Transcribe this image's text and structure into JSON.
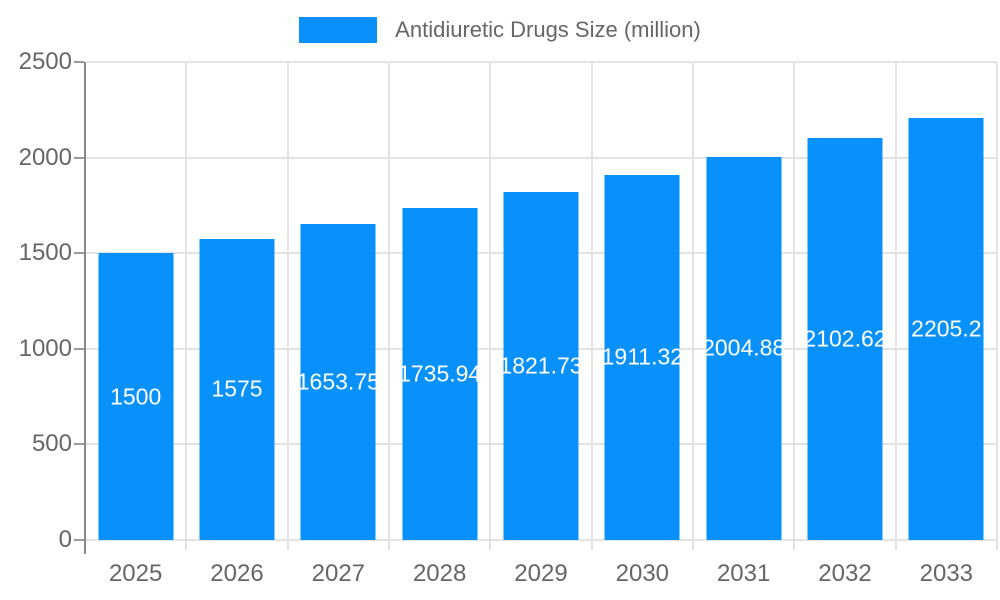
{
  "legend": {
    "swatch_color": "#0991fb",
    "label": "Antidiuretic Drugs Size (million)"
  },
  "chart_data": {
    "type": "bar",
    "title": "Antidiuretic Drugs Size (million)",
    "categories": [
      "2025",
      "2026",
      "2027",
      "2028",
      "2029",
      "2030",
      "2031",
      "2032",
      "2033"
    ],
    "values": [
      1500,
      1575,
      1653.75,
      1735.94,
      1821.73,
      1911.32,
      2004.88,
      2102.62,
      2205.2
    ],
    "bar_labels": [
      "1500",
      "1575",
      "1653.75",
      "1735.94",
      "1821.73",
      "1911.32",
      "2004.88",
      "2102.62",
      "2205.2"
    ],
    "xlabel": "",
    "ylabel": "",
    "ylim": [
      0,
      2500
    ],
    "yticks": [
      0,
      500,
      1000,
      1500,
      2000,
      2500
    ],
    "grid": true,
    "legend_position": "top-center",
    "colors": {
      "bar": "#0991fb",
      "grid": "#e3e3e3",
      "axis": "#888888",
      "tick": "#999999",
      "text": "#666666",
      "value_label": "#ffffff"
    }
  }
}
